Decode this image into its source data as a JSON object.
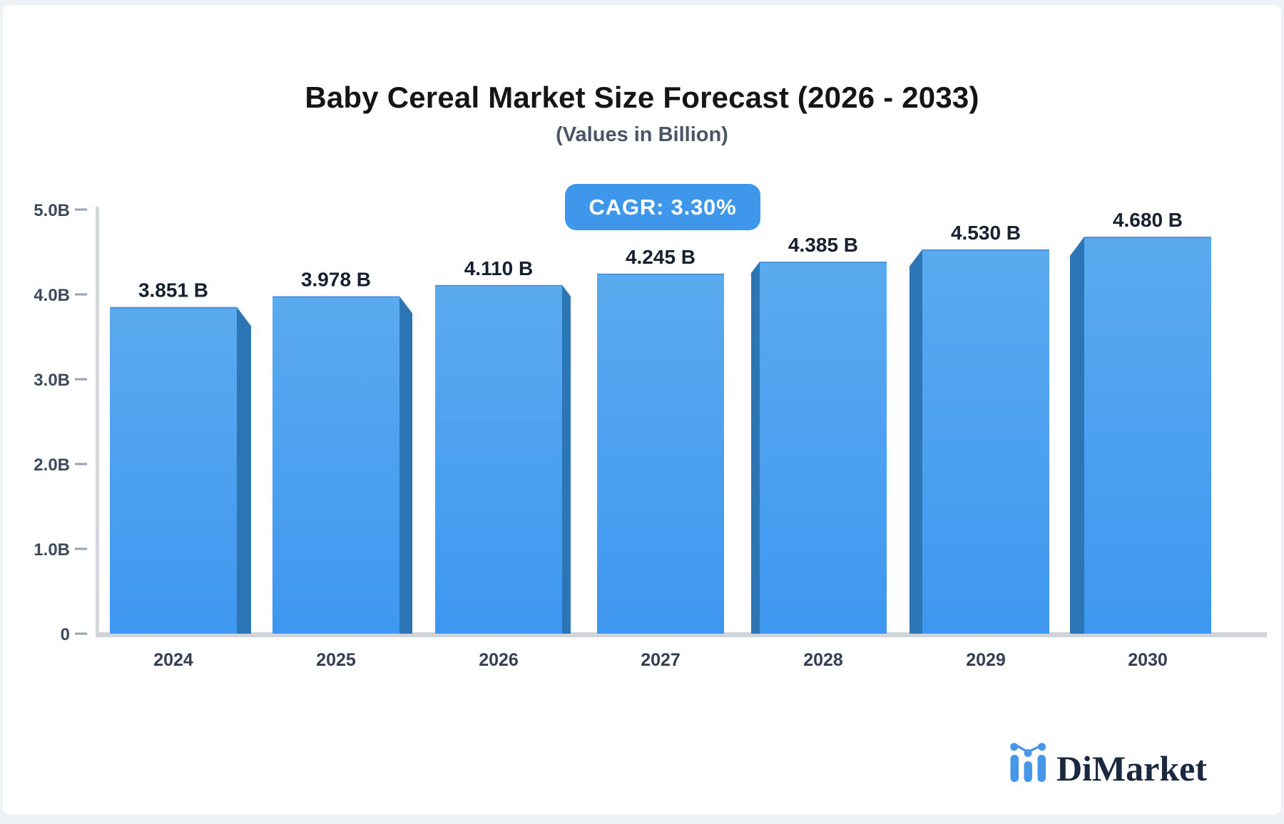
{
  "header": {
    "title": "Baby Cereal Market Size Forecast (2026 - 2033)",
    "subtitle": "(Values in Billion)",
    "cagr_label": "CAGR: 3.30%"
  },
  "chart_data": {
    "type": "bar",
    "title": "Baby Cereal Market Size Forecast (2026 - 2033)",
    "subtitle": "(Values in Billion)",
    "cagr": "3.30%",
    "categories": [
      "2024",
      "2025",
      "2026",
      "2027",
      "2028",
      "2029",
      "2030"
    ],
    "values": [
      3.851,
      3.978,
      4.11,
      4.245,
      4.385,
      4.53,
      4.68
    ],
    "value_labels": [
      "3.851 B",
      "3.978 B",
      "4.110 B",
      "4.245 B",
      "4.385 B",
      "4.530 B",
      "4.680 B"
    ],
    "y_ticks": [
      {
        "label": "5.0B",
        "value": 5.0
      },
      {
        "label": "4.0B",
        "value": 4.0
      },
      {
        "label": "3.0B",
        "value": 3.0
      },
      {
        "label": "2.0B",
        "value": 2.0
      },
      {
        "label": "1.0B",
        "value": 1.0
      },
      {
        "label": "0",
        "value": 0.0
      }
    ],
    "ylim": [
      0,
      5
    ],
    "grid": false,
    "legend": false,
    "colors": {
      "bar_top": "#5BAAEF",
      "bar_bottom": "#3E97F0",
      "bar_edge": "#4F93DA",
      "bar_side": "#2D76B6",
      "shadow": "#8e9bab",
      "badge": "#3F97EB",
      "axis_line": "#d5d9de",
      "tick": "#98a2b0",
      "tick_label": "#3e4a5c",
      "value_label": "#17202e",
      "year_label": "#333f52"
    }
  },
  "footer": {
    "brand": "DiMarket",
    "logo_icon": "bar-chart-with-trend-dots"
  }
}
